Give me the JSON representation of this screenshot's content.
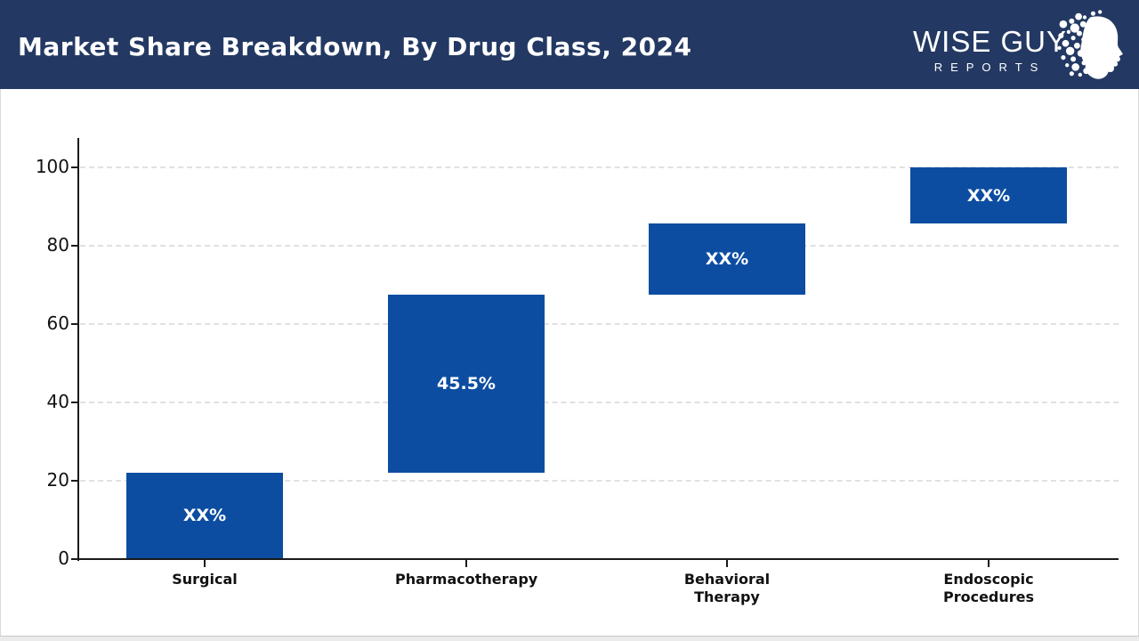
{
  "header": {
    "title": "Market Share Breakdown, By Drug Class, 2024",
    "logo": {
      "line1": "WISE GUY",
      "line2": "REPORTS"
    }
  },
  "watermark": {
    "line1": "WISE GUY",
    "line2": "R E P O R T S"
  },
  "colors": {
    "header_navy": "#233963",
    "bar_blue": "#0c4da1",
    "grid_gray": "#e1e1e1",
    "watermark_gray": "#f1f2f4"
  },
  "chart_data": {
    "type": "bar",
    "subtype": "waterfall",
    "title": "Market Share Breakdown, By Drug Class, 2024",
    "categories": [
      "Surgical",
      "Pharmacotherapy",
      "Behavioral Therapy",
      "Endoscopic Procedures"
    ],
    "segments": [
      {
        "category": "Surgical",
        "start": 0,
        "end": 22,
        "label": "XX%"
      },
      {
        "category": "Pharmacotherapy",
        "start": 22,
        "end": 67.5,
        "label": "45.5%"
      },
      {
        "category": "Behavioral Therapy",
        "start": 67.5,
        "end": 85.5,
        "label": "XX%"
      },
      {
        "category": "Endoscopic Procedures",
        "start": 85.5,
        "end": 100,
        "label": "XX%"
      }
    ],
    "yticks": [
      0,
      20,
      40,
      60,
      80,
      100
    ],
    "ylim": [
      0,
      105
    ],
    "xlabel": "",
    "ylabel": "",
    "grid": "horizontal-dashed",
    "legend": "none"
  }
}
